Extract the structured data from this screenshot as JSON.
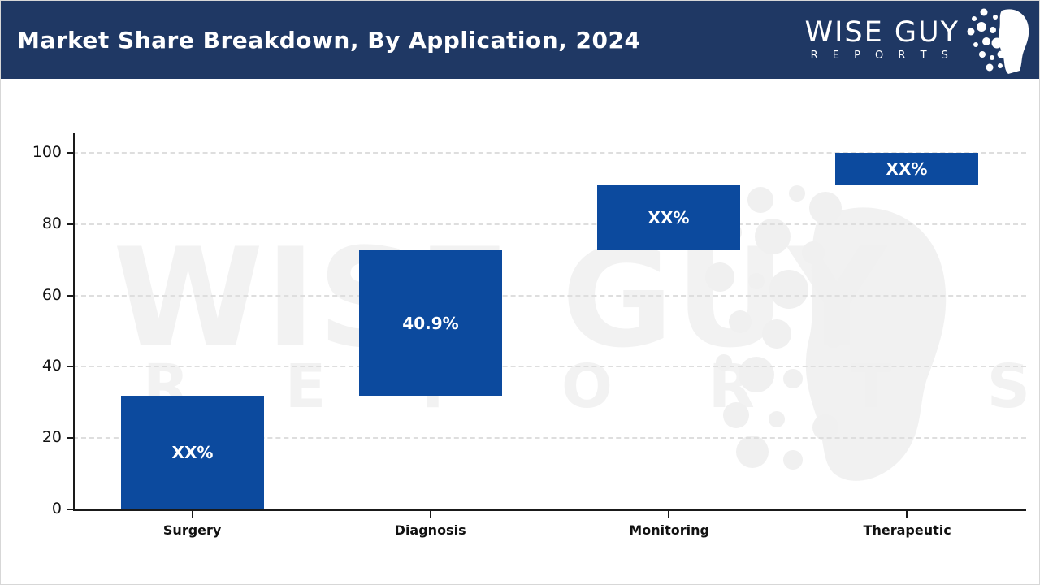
{
  "header": {
    "title": "Market Share Breakdown, By Application, 2024",
    "bg_color": "#1f3864",
    "logo": {
      "line1": "WISE GUY",
      "line2": "R E P O R T S"
    }
  },
  "watermark": {
    "line1": "WISE GUY",
    "line2": "R E P O R T S"
  },
  "chart_data": {
    "type": "bar",
    "subtype": "waterfall",
    "title": "Market Share Breakdown, By Application, 2024",
    "categories": [
      "Surgery",
      "Diagnosis",
      "Monitoring",
      "Therapeutic"
    ],
    "segments": [
      {
        "category": "Surgery",
        "start": 0,
        "end": 31.8,
        "value": 31.8,
        "label": "XX%"
      },
      {
        "category": "Diagnosis",
        "start": 31.8,
        "end": 72.7,
        "value": 40.9,
        "label": "40.9%"
      },
      {
        "category": "Monitoring",
        "start": 72.7,
        "end": 90.9,
        "value": 18.2,
        "label": "XX%"
      },
      {
        "category": "Therapeutic",
        "start": 90.9,
        "end": 100,
        "value": 9.1,
        "label": "XX%"
      }
    ],
    "xlabel": "",
    "ylabel": "",
    "ylim": [
      0,
      105.5
    ],
    "yticks": [
      0,
      20,
      40,
      60,
      80,
      100
    ],
    "grid": "horizontal-dashed",
    "legend": "none",
    "bar_color": "#0c4a9e",
    "bar_label_color": "#ffffff"
  }
}
